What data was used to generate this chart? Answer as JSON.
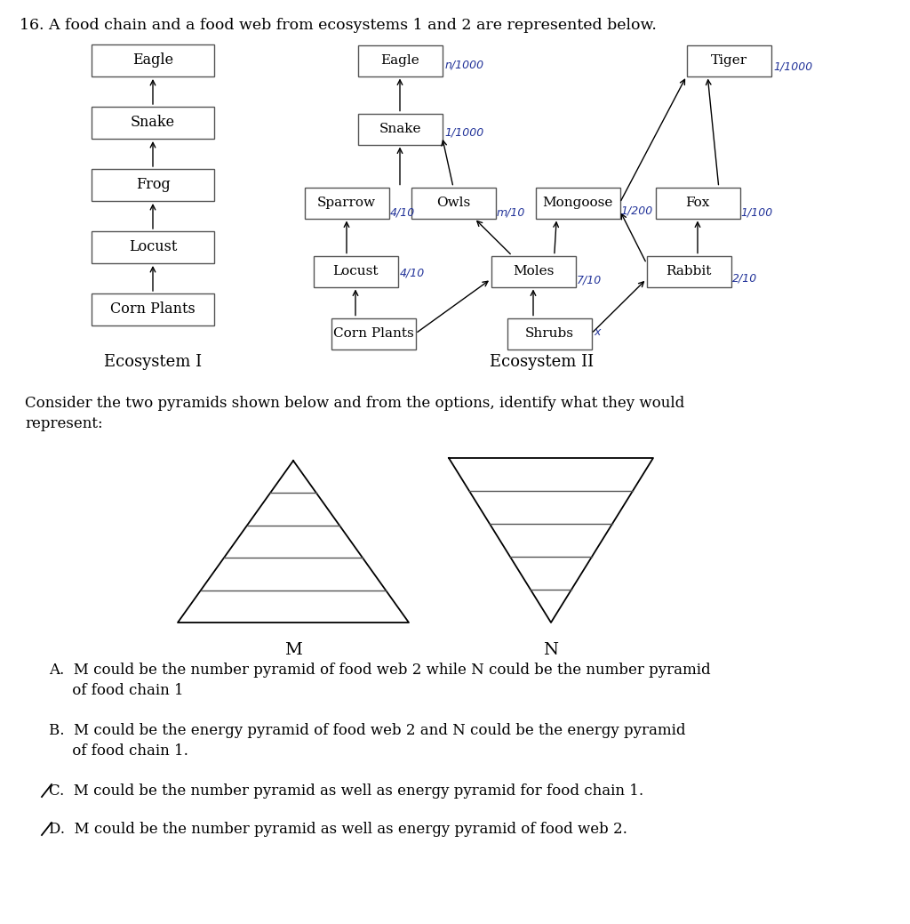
{
  "title_text": "16. A food chain and a food web from ecosystems 1 and 2 are represented below.",
  "bg_color": "#ffffff",
  "eco1_label": "Ecosystem I",
  "eco2_label": "Ecosystem II",
  "consider_line1": "Consider the two pyramids shown below and from the options, identify what they would",
  "consider_line2": "represent:",
  "M_label": "M",
  "N_label": "N",
  "opt_A": "A.  M could be the number pyramid of food web 2 while N could be the number pyramid",
  "opt_A2": "     of food chain 1",
  "opt_B": "B.  M could be the energy pyramid of food web 2 and N could be the energy pyramid",
  "opt_B2": "     of food chain 1.",
  "opt_C": "C.  M could be the number pyramid as well as energy pyramid for food chain 1.",
  "opt_D": "D.  M could be the number pyramid as well as energy pyramid of food web 2."
}
